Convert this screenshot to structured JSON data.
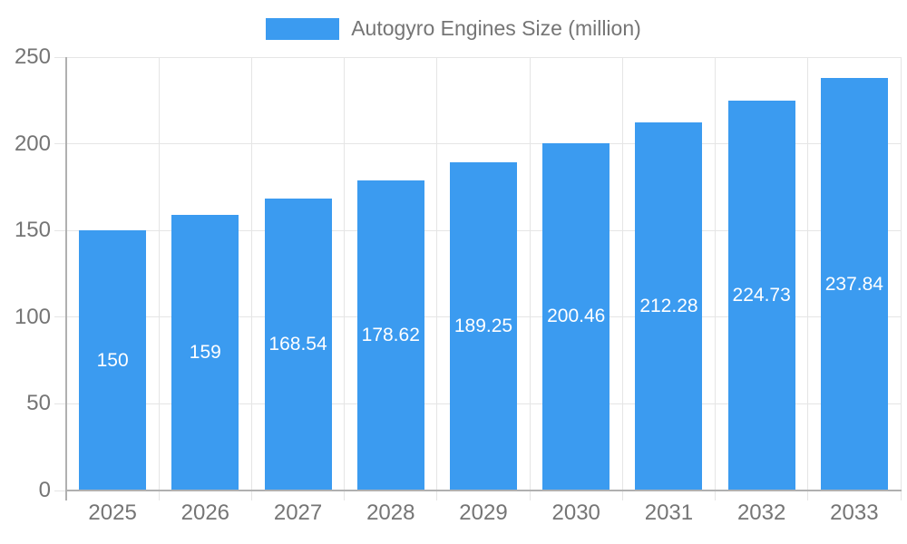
{
  "chart_data": {
    "type": "bar",
    "title": "Autogyro Engines Size (million)",
    "series_name": "Autogyro Engines Size (million)",
    "categories": [
      "2025",
      "2026",
      "2027",
      "2028",
      "2029",
      "2030",
      "2031",
      "2032",
      "2033"
    ],
    "values": [
      150,
      159,
      168.54,
      178.62,
      189.25,
      200.46,
      212.28,
      224.73,
      237.84
    ],
    "value_labels": [
      "150",
      "159",
      "168.54",
      "178.62",
      "189.25",
      "200.46",
      "212.28",
      "224.73",
      "237.84"
    ],
    "xlabel": "",
    "ylabel": "",
    "ylim": [
      0,
      250
    ],
    "yticks": [
      0,
      50,
      100,
      150,
      200,
      250
    ],
    "grid": true,
    "legend_position": "top-center",
    "value_label_position": "inside-center",
    "colors": {
      "bar": "#3b9bf0",
      "grid": "#e5e5e5",
      "axis": "#b0b0b0",
      "tick_text": "#757575",
      "bar_label_text": "#ffffff",
      "background": "#ffffff"
    }
  }
}
